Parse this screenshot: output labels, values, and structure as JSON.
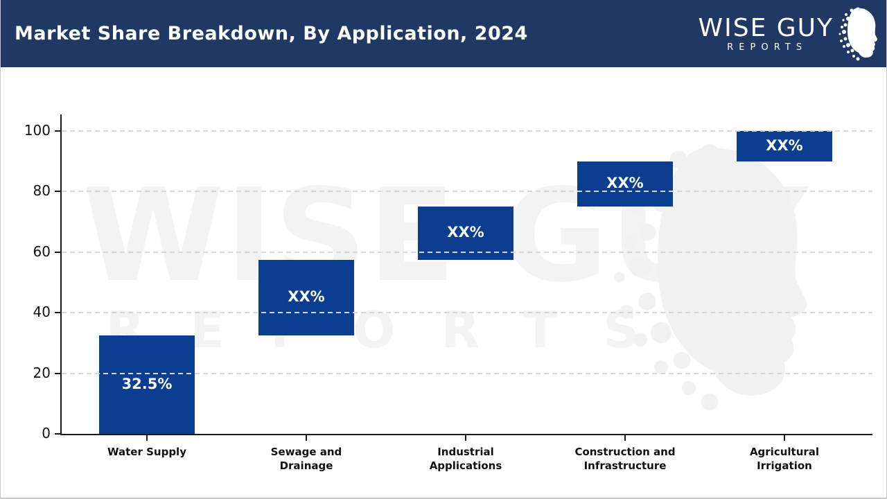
{
  "header": {
    "title": "Market Share Breakdown, By Application, 2024",
    "bg_color": "#1f3864",
    "logo": {
      "line1": "WISE GUY",
      "line2": "REPORTS"
    }
  },
  "watermark": {
    "line1": "WISE GUY",
    "line2": "REPORTS"
  },
  "chart_data": {
    "type": "bar",
    "variant": "waterfall",
    "title": "Market Share Breakdown, By Application, 2024",
    "categories": [
      "Water Supply",
      "Sewage and Drainage",
      "Industrial Applications",
      "Construction and Infrastructure",
      "Agricultural Irrigation"
    ],
    "category_label_lines": [
      [
        "Water Supply"
      ],
      [
        "Sewage and",
        "Drainage"
      ],
      [
        "Industrial",
        "Applications"
      ],
      [
        "Construction and",
        "Infrastructure"
      ],
      [
        "Agricultural",
        "Irrigation"
      ]
    ],
    "segments": [
      {
        "category": "Water Supply",
        "start": 0,
        "end": 32.5,
        "label": "32.5%"
      },
      {
        "category": "Sewage and Drainage",
        "start": 32.5,
        "end": 57.5,
        "label": "XX%"
      },
      {
        "category": "Industrial Applications",
        "start": 57.5,
        "end": 75,
        "label": "XX%"
      },
      {
        "category": "Construction and Infrastructure",
        "start": 75,
        "end": 90,
        "label": "XX%"
      },
      {
        "category": "Agricultural Irrigation",
        "start": 90,
        "end": 100,
        "label": "XX%"
      }
    ],
    "xlabel": "",
    "ylabel": "",
    "ylim": [
      0,
      100
    ],
    "yticks": [
      0,
      20,
      40,
      60,
      80,
      100
    ],
    "grid": {
      "horizontal": true,
      "style": "dashed",
      "drawn_over_bars": true,
      "color": "#d6d6d6"
    },
    "legend": "none",
    "bar_color": "#0b3d91",
    "bar_label_color": "#ffffff",
    "axis_color": "#1a1a1a"
  }
}
